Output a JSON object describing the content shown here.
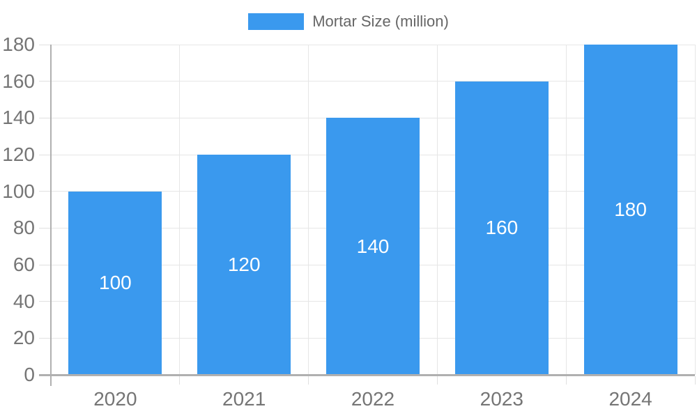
{
  "chart_data": {
    "type": "bar",
    "title": "",
    "categories": [
      "2020",
      "2021",
      "2022",
      "2023",
      "2024"
    ],
    "series": [
      {
        "name": "Mortar Size (million)",
        "color": "#3A99EE",
        "values": [
          100,
          120,
          140,
          160,
          180
        ]
      }
    ],
    "data_labels": {
      "show": true,
      "position": "inside-center",
      "color": "#ffffff"
    },
    "xlabel": "",
    "ylabel": "",
    "ylim": [
      0,
      180
    ],
    "yticks": [
      0,
      20,
      40,
      60,
      80,
      100,
      120,
      140,
      160,
      180
    ],
    "grid": {
      "horizontal": true,
      "vertical": true
    },
    "legend_position": "top-center",
    "colors": {
      "bar": "#3A99EE",
      "grid": "#e6e6e6",
      "tick": "#e0e0e0",
      "axis_line": "#b0b0b0",
      "axis_label": "#757575",
      "legend_text": "#666666",
      "bar_label": "#ffffff",
      "background": "#ffffff"
    }
  }
}
